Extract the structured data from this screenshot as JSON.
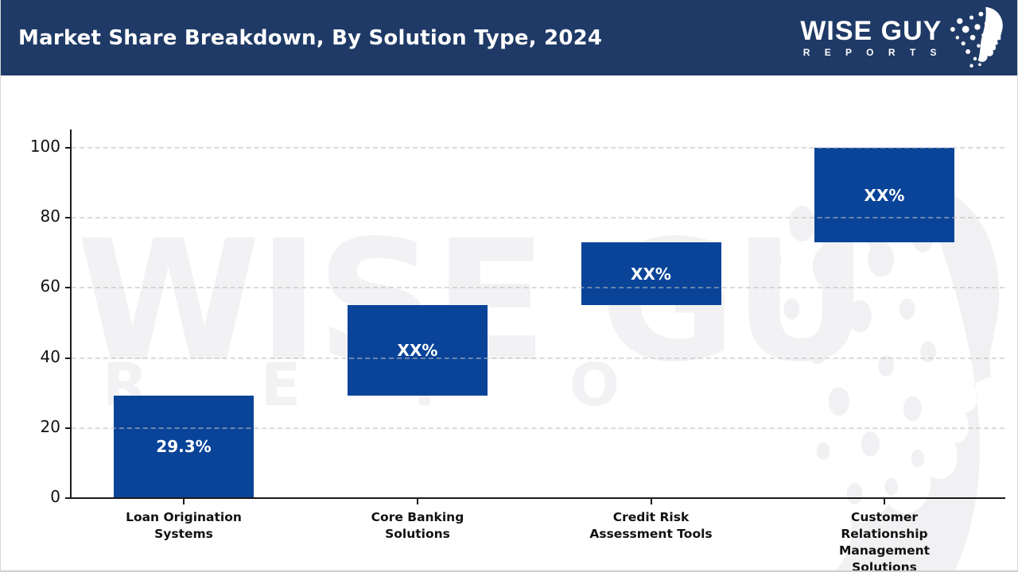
{
  "header": {
    "title": "Market Share Breakdown, By Solution Type, 2024",
    "logo": {
      "line1": "WISE GUY",
      "line2": "R E P O R T S",
      "icon": "dotted-face-profile-icon"
    }
  },
  "watermark": {
    "line1": "WISE GUY",
    "line2": "R E P O R T S",
    "icon": "dotted-face-profile-watermark"
  },
  "colors": {
    "header_bg": "#1f3a66",
    "bar": "#0a4499",
    "bar_label": "#ffffff",
    "axis": "#1a1a1a",
    "gridline": "#bebebe",
    "watermark": "#f2f2f4"
  },
  "chart_data": {
    "type": "bar",
    "subtype": "waterfall",
    "title": "Market Share Breakdown, By Solution Type, 2024",
    "categories": [
      "Loan Origination Systems",
      "Core Banking Solutions",
      "Credit Risk Assessment Tools",
      "Customer Relationship Management Solutions"
    ],
    "category_lines": [
      [
        "Loan Origination",
        "Systems"
      ],
      [
        "Core Banking",
        "Solutions"
      ],
      [
        "Credit Risk",
        "Assessment Tools"
      ],
      [
        "Customer",
        "Relationship",
        "Management",
        "Solutions"
      ]
    ],
    "segments": [
      {
        "start": 0,
        "end": 29.3,
        "label": "29.3%"
      },
      {
        "start": 29.3,
        "end": 55,
        "label": "XX%"
      },
      {
        "start": 55,
        "end": 73,
        "label": "XX%"
      },
      {
        "start": 73,
        "end": 100,
        "label": "XX%"
      }
    ],
    "xlabel": "",
    "ylabel": "",
    "ylim": [
      0,
      100
    ],
    "yticks": [
      0,
      20,
      40,
      60,
      80,
      100
    ],
    "grid": "horizontal-dashed",
    "legend": "none"
  }
}
